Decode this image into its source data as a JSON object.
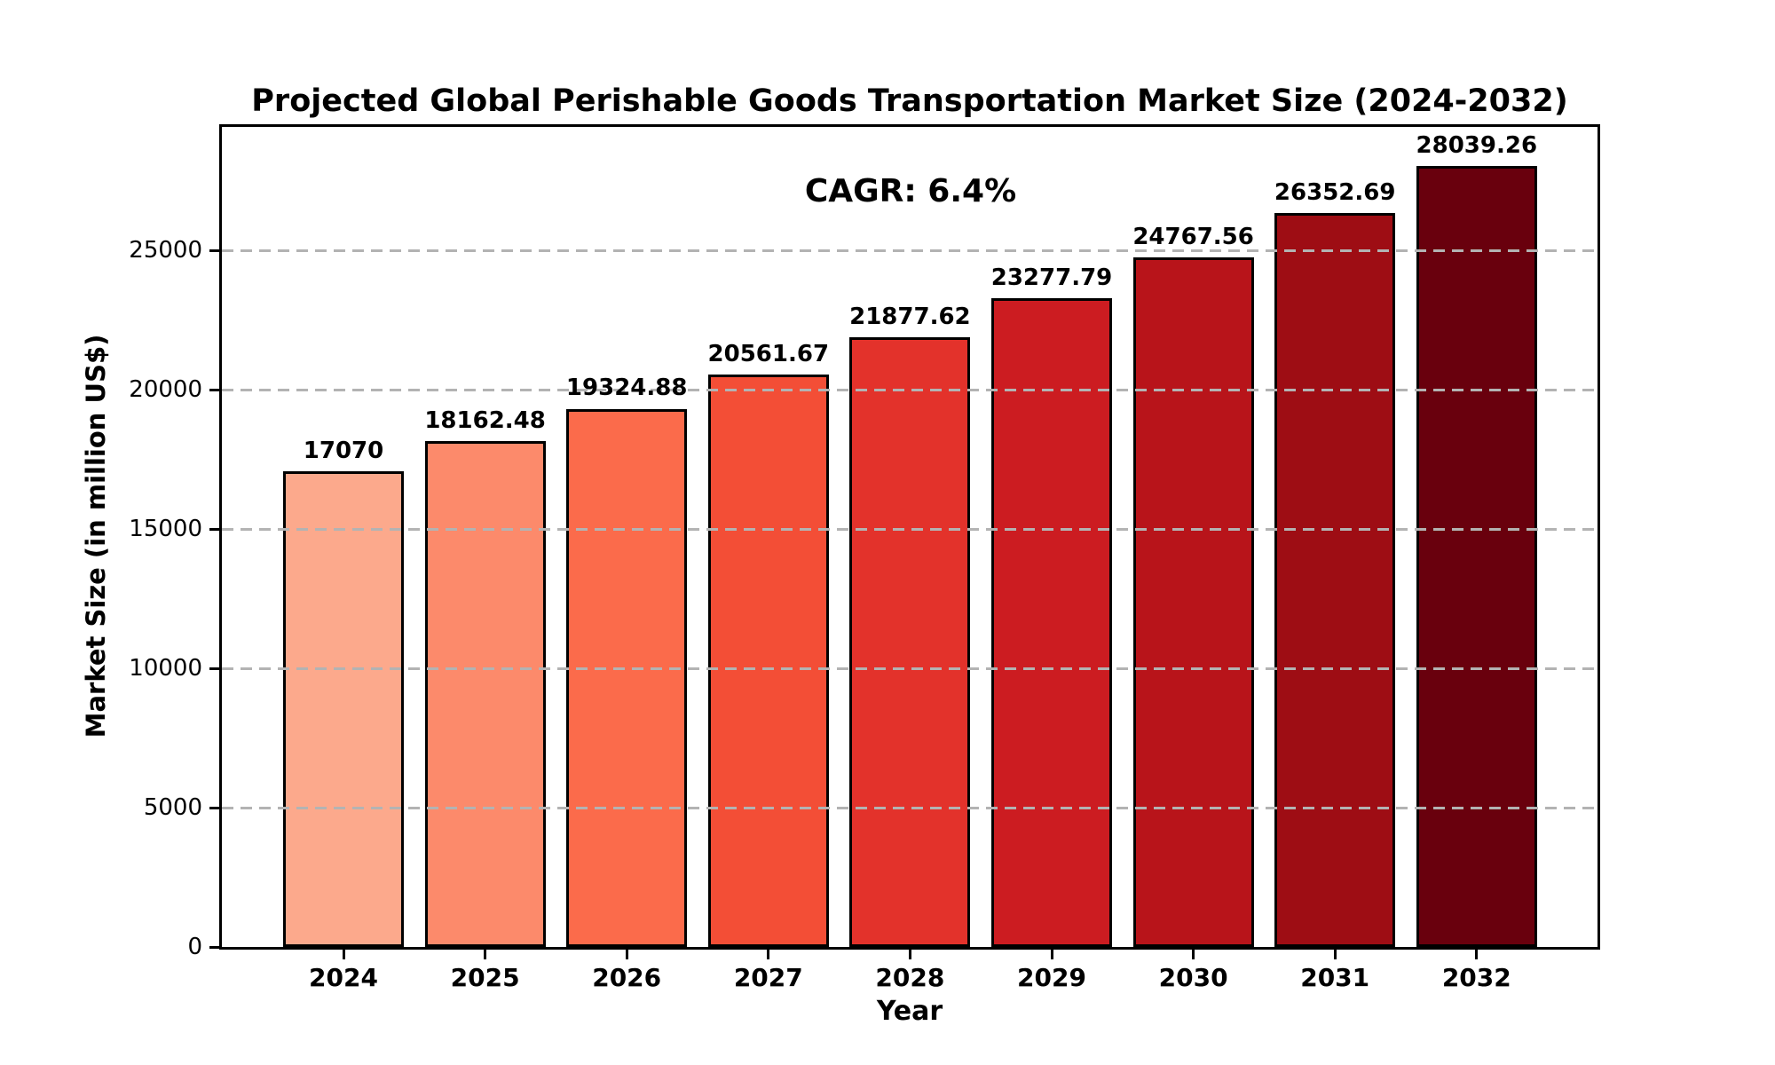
{
  "chart_data": {
    "type": "bar",
    "title": "Projected Global Perishable Goods Transportation Market Size (2024-2032)",
    "annotation": "CAGR: 6.4%",
    "xlabel": "Year",
    "ylabel": "Market Size (in million US$)",
    "categories": [
      "2024",
      "2025",
      "2026",
      "2027",
      "2028",
      "2029",
      "2030",
      "2031",
      "2032"
    ],
    "values": [
      17070,
      18162.48,
      19324.88,
      20561.67,
      21877.62,
      23277.79,
      24767.56,
      26352.69,
      28039.26
    ],
    "value_labels": [
      "17070",
      "18162.48",
      "19324.88",
      "20561.67",
      "21877.62",
      "23277.79",
      "24767.56",
      "26352.69",
      "28039.26"
    ],
    "bar_colors": [
      "#FCA98C",
      "#FC8A6B",
      "#FB6B4B",
      "#F34E36",
      "#E3322B",
      "#CC1C21",
      "#B8141A",
      "#9E0D14",
      "#69000D"
    ],
    "bar_edge_color": "#000000",
    "ylim": [
      0,
      29441
    ],
    "yticks": [
      0,
      5000,
      10000,
      15000,
      20000,
      25000
    ],
    "grid": "horizontal-dashed",
    "grid_color": "#b3b3b3",
    "legend": "none",
    "background": "#ffffff"
  }
}
